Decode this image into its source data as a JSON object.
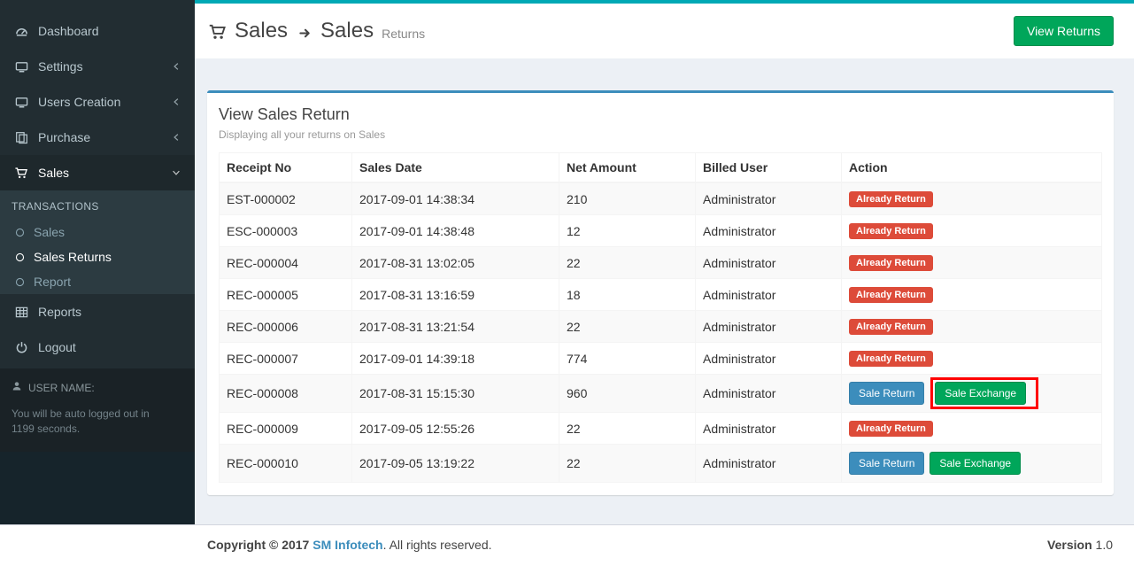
{
  "colors": {
    "top_strip": "#00a9b5",
    "sidebar_bg": "#222d32",
    "sidebar_active_bg": "#1e282c",
    "submenu_bg": "#2c3b41",
    "card_accent_blue": "#3c8dbc",
    "success_green": "#00a65a",
    "danger_red": "#dd4b39",
    "highlight_red": "#ff0000"
  },
  "sidebar": {
    "menu": [
      {
        "type": "item",
        "label": "Dashboard",
        "icon": "dashboard-icon"
      },
      {
        "type": "item",
        "label": "Settings",
        "icon": "monitor-icon",
        "chevron": "left"
      },
      {
        "type": "item",
        "label": "Users Creation",
        "icon": "monitor-icon",
        "chevron": "left"
      },
      {
        "type": "item",
        "label": "Purchase",
        "icon": "copy-icon",
        "chevron": "left"
      },
      {
        "type": "item",
        "label": "Sales",
        "icon": "cart-icon",
        "chevron": "down",
        "active": true
      },
      {
        "type": "header",
        "label": "TRANSACTIONS"
      },
      {
        "type": "subitem",
        "label": "Sales",
        "icon": "circle-icon"
      },
      {
        "type": "subitem",
        "label": "Sales Returns",
        "icon": "circle-icon",
        "active": true
      },
      {
        "type": "subitem",
        "label": "Report",
        "icon": "circle-icon"
      },
      {
        "type": "item",
        "label": "Reports",
        "icon": "table-icon"
      },
      {
        "type": "item",
        "label": "Logout",
        "icon": "power-icon"
      }
    ],
    "user_label": "USER NAME:",
    "auto_logout_text": "You will be auto logged out in 1199 seconds."
  },
  "header": {
    "title_primary": "Sales",
    "title_secondary": "Sales",
    "title_small": "Returns",
    "view_returns_button": "View Returns"
  },
  "card": {
    "title": "View Sales Return",
    "subtitle": "Displaying all your returns on Sales"
  },
  "table": {
    "columns": [
      "Receipt No",
      "Sales Date",
      "Net Amount",
      "Billed User",
      "Action"
    ],
    "badge_already": "Already Return",
    "btn_sale_return": "Sale Return",
    "btn_sale_exchange": "Sale Exchange",
    "rows": [
      {
        "receipt": "EST-000002",
        "date": "2017-09-01 14:38:34",
        "amount": "210",
        "user": "Administrator",
        "action": "already"
      },
      {
        "receipt": "ESC-000003",
        "date": "2017-09-01 14:38:48",
        "amount": "12",
        "user": "Administrator",
        "action": "already"
      },
      {
        "receipt": "REC-000004",
        "date": "2017-08-31 13:02:05",
        "amount": "22",
        "user": "Administrator",
        "action": "already"
      },
      {
        "receipt": "REC-000005",
        "date": "2017-08-31 13:16:59",
        "amount": "18",
        "user": "Administrator",
        "action": "already"
      },
      {
        "receipt": "REC-000006",
        "date": "2017-08-31 13:21:54",
        "amount": "22",
        "user": "Administrator",
        "action": "already"
      },
      {
        "receipt": "REC-000007",
        "date": "2017-09-01 14:39:18",
        "amount": "774",
        "user": "Administrator",
        "action": "already"
      },
      {
        "receipt": "REC-000008",
        "date": "2017-08-31 15:15:30",
        "amount": "960",
        "user": "Administrator",
        "action": "buttons",
        "highlight": true
      },
      {
        "receipt": "REC-000009",
        "date": "2017-09-05 12:55:26",
        "amount": "22",
        "user": "Administrator",
        "action": "already"
      },
      {
        "receipt": "REC-000010",
        "date": "2017-09-05 13:19:22",
        "amount": "22",
        "user": "Administrator",
        "action": "buttons"
      }
    ]
  },
  "footer": {
    "copyright_prefix": "Copyright © 2017 ",
    "company": "SM Infotech",
    "copyright_suffix": ". All rights reserved.",
    "version_label": "Version",
    "version_value": " 1.0"
  }
}
